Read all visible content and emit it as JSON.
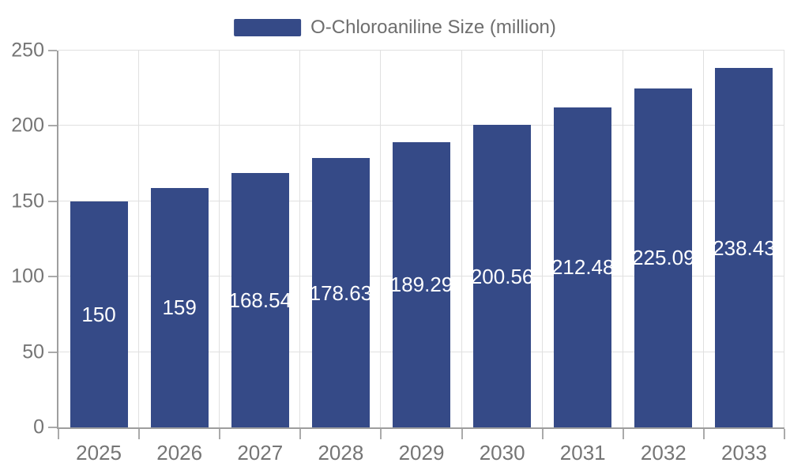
{
  "legend": {
    "label": "O-Chloroaniline Size (million)"
  },
  "colors": {
    "bar": "#354a87",
    "grid_line": "#e0e0e0",
    "axis_line": "#9e9e9e",
    "tick_mark": "#aaaaaa",
    "axis_label": "#757575",
    "legend_text": "#6e6e6e",
    "value_label": "#ffffff",
    "background": "#ffffff"
  },
  "chart_data": {
    "type": "bar",
    "title": "O-Chloroaniline Size (million)",
    "categories": [
      "2025",
      "2026",
      "2027",
      "2028",
      "2029",
      "2030",
      "2031",
      "2032",
      "2033"
    ],
    "values": [
      150,
      159,
      168.54,
      178.63,
      189.29,
      200.56,
      212.48,
      225.09,
      238.43
    ],
    "value_labels": [
      "150",
      "159",
      "168.54",
      "178.63",
      "189.29",
      "200.56",
      "212.48",
      "225.09",
      "238.43"
    ],
    "series": [
      {
        "name": "O-Chloroaniline Size (million)",
        "values": [
          150,
          159,
          168.54,
          178.63,
          189.29,
          200.56,
          212.48,
          225.09,
          238.43
        ]
      }
    ],
    "xlabel": "",
    "ylabel": "",
    "ylim": [
      0,
      250
    ],
    "yticks": [
      0,
      50,
      100,
      150,
      200,
      250
    ],
    "grid": true,
    "legend_position": "top-center",
    "value_labels_position": "center-of-bar"
  }
}
